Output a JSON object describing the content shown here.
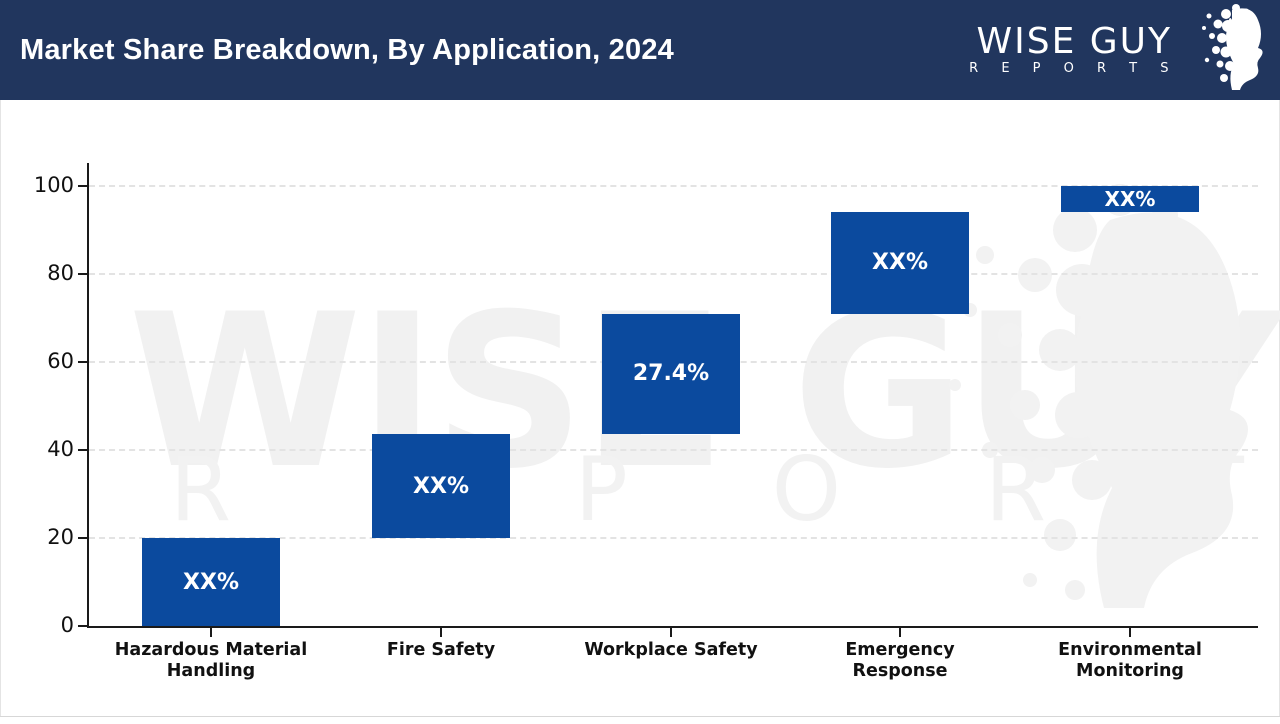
{
  "header": {
    "title": "Market Share Breakdown, By Application, 2024",
    "logo": {
      "line1": "WISE GUY",
      "line2": "REPORTS"
    }
  },
  "watermark": {
    "line1": "WISE GUY",
    "line2": "REPORTS"
  },
  "chart_data": {
    "type": "bar",
    "variant": "floating-segment-bars",
    "title": "Market Share Breakdown, By Application, 2024",
    "categories": [
      "Hazardous Material Handling",
      "Fire Safety",
      "Workplace Safety",
      "Emergency Response",
      "Environmental Monitoring"
    ],
    "segments": [
      {
        "start": 0,
        "end": 20,
        "label": "XX%"
      },
      {
        "start": 20,
        "end": 43.6,
        "label": "XX%"
      },
      {
        "start": 43.6,
        "end": 71,
        "label": "27.4%"
      },
      {
        "start": 71,
        "end": 94,
        "label": "XX%"
      },
      {
        "start": 94,
        "end": 100,
        "label": "XX%"
      }
    ],
    "yticks": [
      0,
      20,
      40,
      60,
      80,
      100
    ],
    "ylim": [
      0,
      105
    ],
    "xlabel": "",
    "ylabel": "",
    "grid": "dashed-horizontal",
    "legend": "none",
    "colors": {
      "bar": "#0B4A9E",
      "header_bg": "#21365E",
      "axis": "#1a1a1a",
      "gridline": "#e3e3e3",
      "bar_label": "#ffffff",
      "watermark": "#f1f1f1"
    }
  }
}
